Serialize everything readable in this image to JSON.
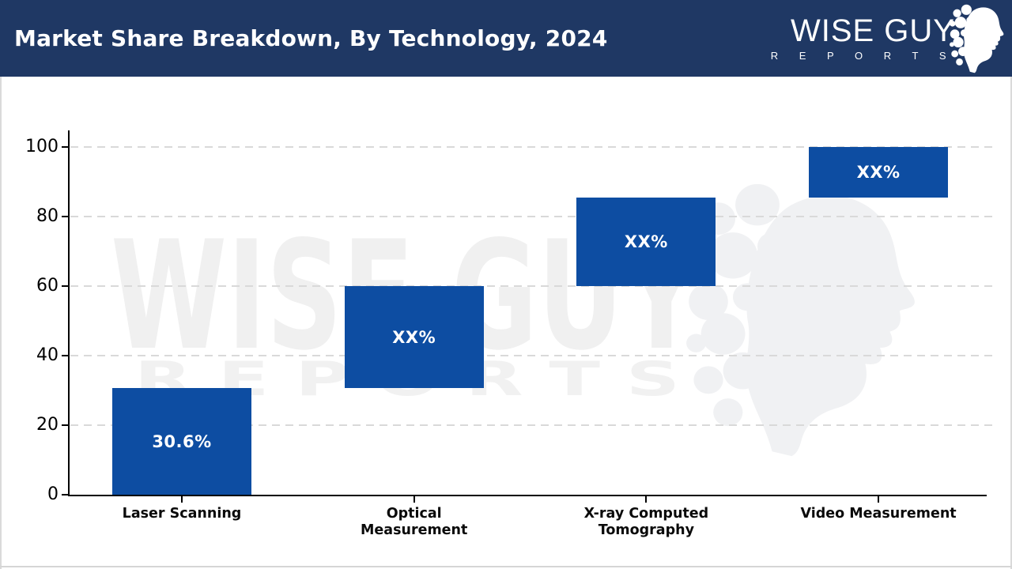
{
  "header": {
    "title": "Market Share Breakdown, By Technology, 2024",
    "bg_color": "#1f3864",
    "logo": {
      "wordmark": "WISE GUY",
      "subtext": "R E P O R T S"
    }
  },
  "watermark": {
    "wordmark": "WISE GUY",
    "subtext": "R E P O R T S"
  },
  "chart_data": {
    "type": "bar",
    "subtype": "waterfall",
    "title": "Market Share Breakdown, By Technology, 2024",
    "categories": [
      "Laser Scanning",
      "Optical Measurement",
      "X-ray Computed Tomography",
      "Video Measurement"
    ],
    "bars": [
      {
        "category_lines": [
          "Laser Scanning"
        ],
        "start": 0,
        "end": 30.6,
        "value_label": "30.6%"
      },
      {
        "category_lines": [
          "Optical",
          "Measurement"
        ],
        "start": 30.6,
        "end": 60,
        "value_label": "XX%"
      },
      {
        "category_lines": [
          "X-ray Computed",
          "Tomography"
        ],
        "start": 60,
        "end": 85.5,
        "value_label": "XX%"
      },
      {
        "category_lines": [
          "Video Measurement"
        ],
        "start": 85.5,
        "end": 100,
        "value_label": "XX%"
      }
    ],
    "yticks": [
      0,
      20,
      40,
      60,
      80,
      100
    ],
    "ylim": [
      0,
      100
    ],
    "xlabel": "",
    "ylabel": "",
    "legend": "none",
    "grid": "horizontal-dashed",
    "bar_color": "#0d4da2",
    "bar_label_color": "#ffffff",
    "axis_color": "#000000",
    "gridline_color": "#d9d9d9"
  }
}
